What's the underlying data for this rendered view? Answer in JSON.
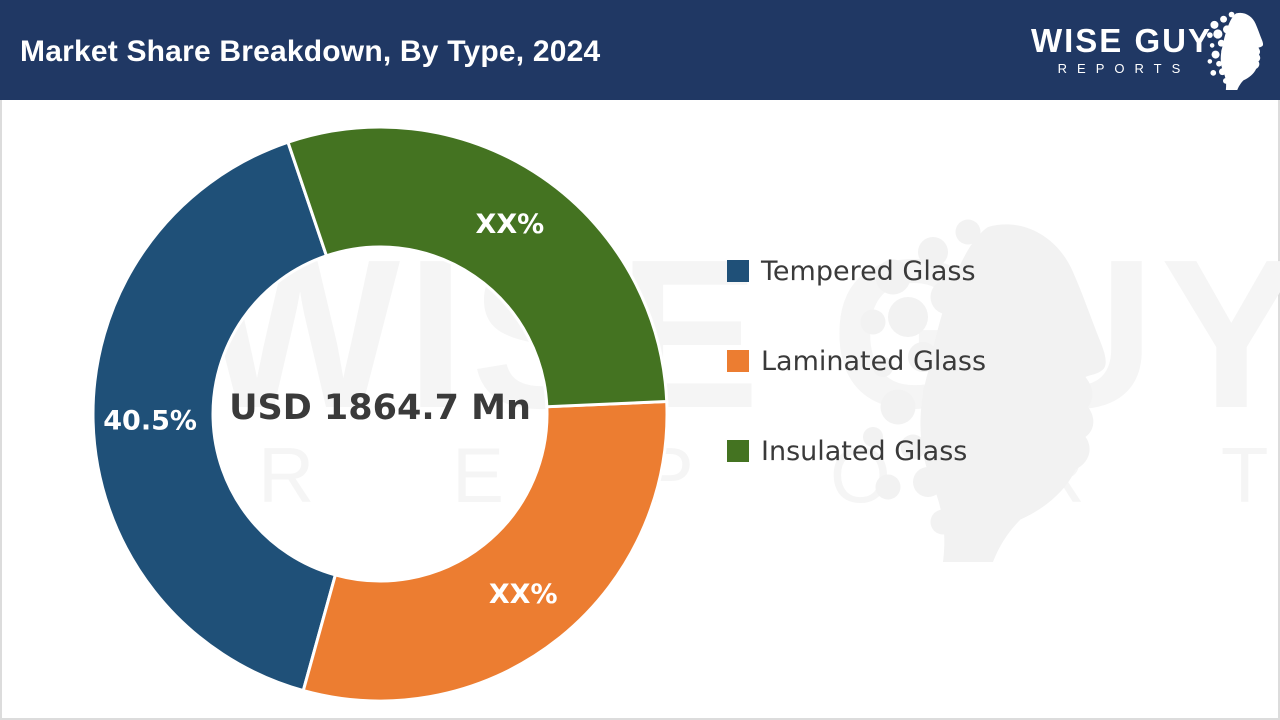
{
  "header": {
    "title": "Market Share Breakdown, By Type, 2024",
    "bg_color": "#203864",
    "logo": {
      "line1": "WISE GUY",
      "line2": "REPORTS"
    }
  },
  "watermark": {
    "line1": "WISE GUY",
    "line2": "R E P O R T S"
  },
  "chart_data": {
    "type": "pie",
    "donut": true,
    "title": "Market Share Breakdown, By Type, 2024",
    "center_label": "USD 1864.7 Mn",
    "start_angle_deg": 108.7,
    "direction": "counterclockwise",
    "legend_position": "right",
    "slices": [
      {
        "name": "Tempered Glass",
        "label": "40.5%",
        "value_pct": 40.5,
        "color": "#1F5078"
      },
      {
        "name": "Laminated Glass",
        "label": "XX%",
        "value_pct": 30.0,
        "color": "#EC7D31"
      },
      {
        "name": "Insulated Glass",
        "label": "XX%",
        "value_pct": 29.5,
        "color": "#447321"
      }
    ]
  }
}
